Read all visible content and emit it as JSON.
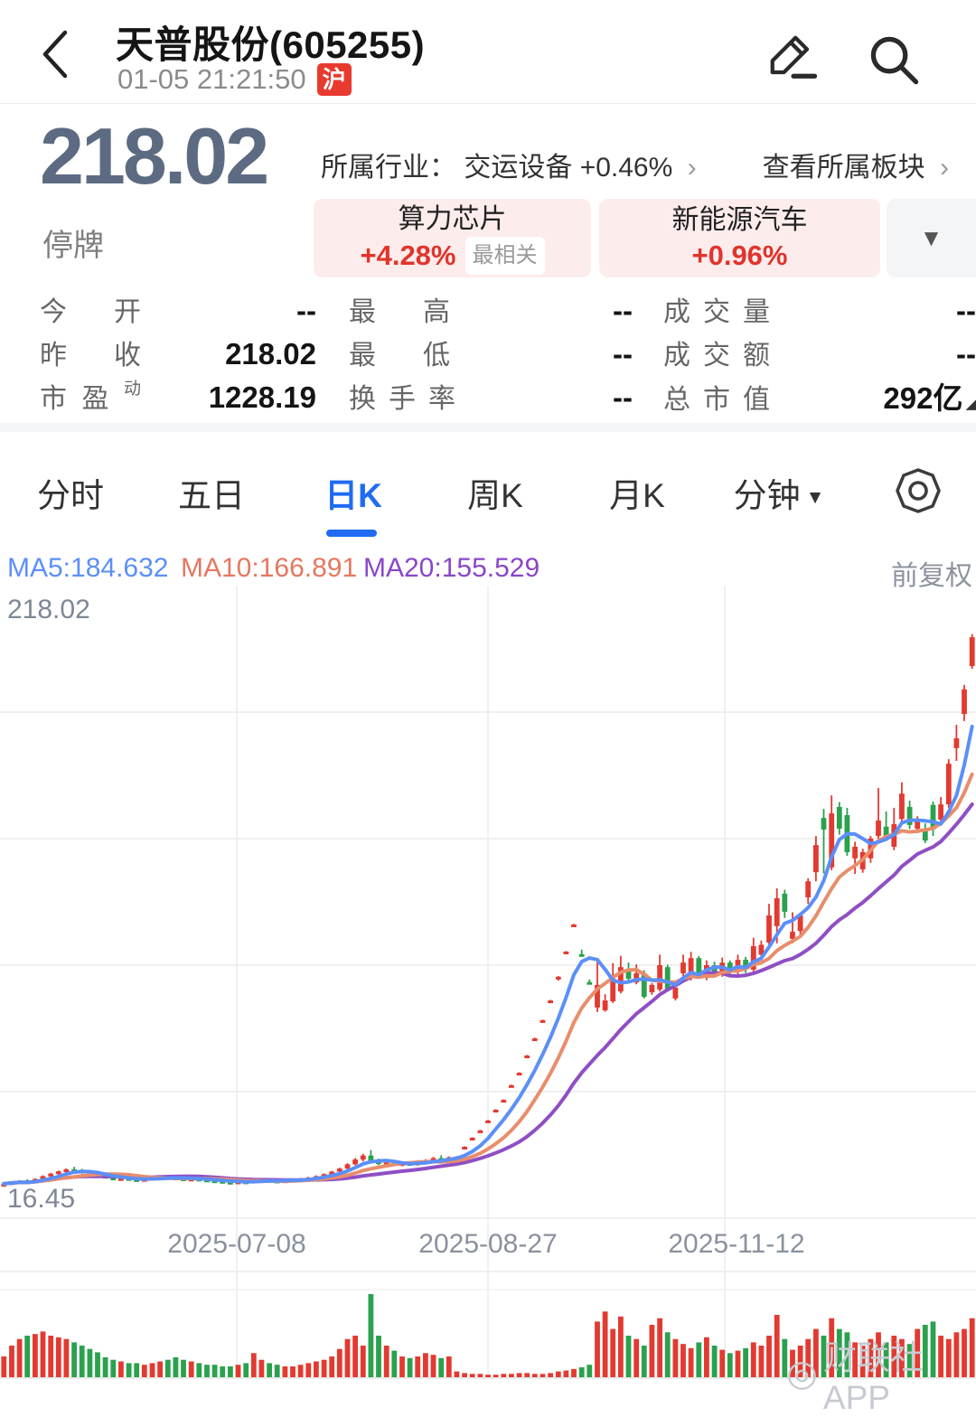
{
  "header": {
    "title": "天普股份(605255)",
    "datetime": "01-05 21:21:50",
    "exchange_badge": "沪"
  },
  "quote": {
    "price": "218.02",
    "status": "停牌",
    "industry_label": "所属行业：",
    "industry_name": "交运设备",
    "industry_change": "+0.46%",
    "chevron": "›",
    "view_sector": "查看所属板块",
    "tags": [
      {
        "name": "算力芯片",
        "change": "+4.28%",
        "badge": "最相关"
      },
      {
        "name": "新能源汽车",
        "change": "+0.96%"
      }
    ],
    "more_arrow": "▼"
  },
  "stats": {
    "rows": [
      [
        {
          "label": "今开",
          "value": "--"
        },
        {
          "label": "最高",
          "value": "--"
        },
        {
          "label": "成交量",
          "value": "--"
        }
      ],
      [
        {
          "label": "昨收",
          "value": "218.02"
        },
        {
          "label": "最低",
          "value": "--"
        },
        {
          "label": "成交额",
          "value": "--"
        }
      ],
      [
        {
          "label": "市盈",
          "sup": "动",
          "value": "1228.19"
        },
        {
          "label": "换手率",
          "value": "--"
        },
        {
          "label": "总市值",
          "value": "292亿",
          "corner": "◢"
        }
      ]
    ]
  },
  "tabs": [
    {
      "label": "分时"
    },
    {
      "label": "五日"
    },
    {
      "label": "日K",
      "active": true
    },
    {
      "label": "周K"
    },
    {
      "label": "月K"
    },
    {
      "label": "分钟",
      "dropdown": "▼"
    }
  ],
  "ma_legend": {
    "ma5": "MA5:184.632",
    "ma10": "MA10:166.891",
    "ma20": "MA20:155.529",
    "adjust": "前复权"
  },
  "watermark": "财联社APP",
  "chart_data": {
    "type": "candlestick",
    "title": "天普股份(605255) 日K 前复权",
    "y_max_label": "218.02",
    "y_min_label": "16.45",
    "price_max": 218.02,
    "price_min": 16.45,
    "x_labels": [
      "2025-07-08",
      "2025-08-27",
      "2025-11-12"
    ],
    "ma_values": {
      "MA5": 184.632,
      "MA10": 166.891,
      "MA20": 155.529
    },
    "legend_position": "top",
    "grid": true,
    "colors": {
      "up": "#e23a31",
      "down": "#2ba14e",
      "ma5": "#5b8ff9",
      "ma10": "#e98d6b",
      "ma20": "#8f4fc4"
    },
    "candles": [
      [
        22.5,
        23.2,
        21.8,
        22.9
      ],
      [
        22.9,
        23.8,
        22.4,
        23.5
      ],
      [
        23.5,
        24.2,
        23,
        23.8
      ],
      [
        23.8,
        24.5,
        23.2,
        23.4
      ],
      [
        23.4,
        24.8,
        23.2,
        24.6
      ],
      [
        24.6,
        25.9,
        24.3,
        25.6
      ],
      [
        25.6,
        26.8,
        25.2,
        26.5
      ],
      [
        26.5,
        27.6,
        26,
        27.3
      ],
      [
        27.3,
        28.4,
        26.8,
        28
      ],
      [
        28,
        28.9,
        27.2,
        27.6
      ],
      [
        27.6,
        28.2,
        26.5,
        26.9
      ],
      [
        26.9,
        27.4,
        25.8,
        26.2
      ],
      [
        26.2,
        26.8,
        25.3,
        25.7
      ],
      [
        25.7,
        26.2,
        24.8,
        25.1
      ],
      [
        25.1,
        25.6,
        24.3,
        24.6
      ],
      [
        24.6,
        25.2,
        24,
        24.9
      ],
      [
        24.9,
        25.4,
        24.2,
        24.5
      ],
      [
        24.5,
        25,
        23.8,
        24.2
      ],
      [
        24.2,
        24.9,
        23.7,
        24.6
      ],
      [
        24.6,
        25.3,
        24.1,
        25
      ],
      [
        25,
        25.7,
        24.5,
        25.4
      ],
      [
        25.4,
        26,
        24.8,
        25.1
      ],
      [
        25.1,
        25.6,
        24.4,
        24.8
      ],
      [
        24.8,
        25.3,
        24.1,
        24.5
      ],
      [
        24.5,
        25,
        23.9,
        24.7
      ],
      [
        24.7,
        25.2,
        24,
        24.4
      ],
      [
        24.4,
        24.9,
        23.8,
        24.1
      ],
      [
        24.1,
        24.6,
        23.5,
        23.9
      ],
      [
        23.9,
        24.4,
        23.3,
        23.6
      ],
      [
        23.6,
        24.1,
        23,
        23.4
      ],
      [
        23.4,
        23.9,
        22.8,
        23.7
      ],
      [
        23.7,
        24.2,
        23.1,
        23.5
      ],
      [
        23.5,
        24.3,
        23.2,
        24
      ],
      [
        24,
        24.6,
        23.5,
        24.3
      ],
      [
        24.3,
        24.8,
        23.7,
        24
      ],
      [
        24,
        24.5,
        23.4,
        23.8
      ],
      [
        23.8,
        24.3,
        23.2,
        24.1
      ],
      [
        24.1,
        24.7,
        23.6,
        24.4
      ],
      [
        24.4,
        25,
        23.9,
        24.7
      ],
      [
        24.7,
        25.4,
        24.2,
        25.1
      ],
      [
        25.1,
        25.9,
        24.6,
        25.6
      ],
      [
        25.6,
        26.6,
        25.2,
        26.3
      ],
      [
        26.3,
        27.5,
        25.9,
        27.2
      ],
      [
        27.2,
        28.6,
        26.8,
        28.3
      ],
      [
        28.3,
        30.2,
        27.9,
        29.8
      ],
      [
        29.8,
        32,
        29.4,
        31.5
      ],
      [
        31.5,
        33.5,
        30.8,
        32.9
      ],
      [
        32.9,
        34.8,
        30.2,
        30.9
      ],
      [
        30.9,
        31.8,
        29.5,
        29.9
      ],
      [
        29.9,
        30.8,
        29.2,
        30.4
      ],
      [
        30.4,
        31.2,
        29.6,
        29.9
      ],
      [
        29.9,
        30.6,
        29.1,
        30.2
      ],
      [
        30.2,
        30.9,
        29.4,
        29.7
      ],
      [
        29.7,
        30.8,
        29.3,
        30.5
      ],
      [
        30.5,
        31.6,
        30,
        31.2
      ],
      [
        31.2,
        32.4,
        30.7,
        32
      ],
      [
        32,
        33,
        31.4,
        31.6
      ],
      [
        31.6,
        32.6,
        31,
        32.3
      ],
      [
        32.4,
        32.7,
        32.1,
        32.5
      ],
      [
        35.9,
        36.2,
        35.6,
        36
      ],
      [
        39.1,
        39.4,
        38.8,
        39.2
      ],
      [
        41.7,
        42,
        41.4,
        41.8
      ],
      [
        45.2,
        45.5,
        44.9,
        45.3
      ],
      [
        49,
        49.3,
        48.7,
        49.1
      ],
      [
        52.5,
        52.8,
        52.2,
        52.6
      ],
      [
        57.7,
        58,
        57.4,
        57.8
      ],
      [
        62.1,
        62.4,
        61.8,
        62.2
      ],
      [
        68.2,
        68.5,
        67.9,
        68.3
      ],
      [
        74.3,
        74.6,
        74,
        74.4
      ],
      [
        80.7,
        81,
        80.4,
        80.8
      ],
      [
        87.7,
        88,
        87.4,
        87.8
      ],
      [
        96.1,
        96.4,
        94.8,
        96.2
      ],
      [
        105,
        105.3,
        104.6,
        105.1
      ],
      [
        114.5,
        114.9,
        114.2,
        114.7
      ],
      [
        104.2,
        105.8,
        103.6,
        104
      ],
      [
        94.3,
        95.2,
        93.8,
        94.1
      ],
      [
        85.3,
        102.8,
        83.7,
        93.3
      ],
      [
        84.3,
        90,
        83.8,
        87.8
      ],
      [
        87.5,
        101,
        86.9,
        95.5
      ],
      [
        91,
        103.6,
        90.3,
        99.6
      ],
      [
        99,
        101.2,
        94.2,
        95.5
      ],
      [
        94.2,
        100.6,
        93.5,
        97.4
      ],
      [
        97.4,
        98.5,
        88.5,
        89.1
      ],
      [
        90.7,
        94,
        89.8,
        93.3
      ],
      [
        91.7,
        104,
        91,
        100.3
      ],
      [
        99.6,
        100.5,
        91,
        91.7
      ],
      [
        88.5,
        93.5,
        87.8,
        92.3
      ],
      [
        97.4,
        104,
        95,
        101.2
      ],
      [
        96.5,
        105,
        94.9,
        102.8
      ],
      [
        102.8,
        103.5,
        95.5,
        96.5
      ],
      [
        96.5,
        102,
        95,
        100.3
      ],
      [
        100.3,
        101.5,
        96,
        97
      ],
      [
        97,
        103,
        96.2,
        101.2
      ],
      [
        101.2,
        102,
        96.8,
        98
      ],
      [
        98,
        104,
        97,
        102.2
      ],
      [
        102.2,
        103.2,
        97.5,
        99
      ],
      [
        98.7,
        110,
        97,
        107
      ],
      [
        104,
        109,
        102,
        107.5
      ],
      [
        108.3,
        122,
        107,
        117.9
      ],
      [
        114.1,
        127.5,
        108,
        124
      ],
      [
        125.6,
        127,
        117,
        119.2
      ],
      [
        109.6,
        119,
        108,
        112.1
      ],
      [
        112.4,
        118.5,
        110.5,
        117.9
      ],
      [
        124.3,
        131,
        122,
        130
      ],
      [
        133.2,
        146,
        130,
        142.8
      ],
      [
        152.4,
        155.6,
        132.8,
        148.3
      ],
      [
        134.9,
        160.4,
        133.9,
        154
      ],
      [
        156.3,
        158,
        146.5,
        148.6
      ],
      [
        153.4,
        156,
        139,
        140.3
      ],
      [
        138.1,
        144,
        132.6,
        142.2
      ],
      [
        134.2,
        141.5,
        133,
        140.3
      ],
      [
        138.1,
        146,
        136.5,
        145.1
      ],
      [
        146,
        163,
        145,
        151.5
      ],
      [
        149.3,
        154.7,
        144.4,
        145.4
      ],
      [
        142.2,
        156,
        141,
        150.2
      ],
      [
        152,
        165,
        151,
        161
      ],
      [
        156.3,
        158.5,
        148.5,
        149.9
      ],
      [
        148.6,
        153,
        147,
        151.5
      ],
      [
        148.6,
        150.5,
        143.5,
        144.4
      ],
      [
        157,
        158.2,
        146,
        148.3
      ],
      [
        151.8,
        159.8,
        149.9,
        157.2
      ],
      [
        157.2,
        173.2,
        156,
        171.6
      ],
      [
        177.1,
        185.4,
        172.6,
        180.6
      ],
      [
        189.2,
        199.5,
        186.7,
        197.9
      ],
      [
        206.2,
        217.5,
        205.2,
        216.4
      ]
    ],
    "volumes": [
      25,
      38,
      46,
      50,
      52,
      55,
      50,
      48,
      46,
      42,
      38,
      34,
      30,
      24,
      21,
      19,
      17,
      17,
      15,
      17,
      19,
      21,
      24,
      21,
      19,
      17,
      15,
      15,
      13,
      13,
      15,
      17,
      29,
      21,
      17,
      15,
      13,
      13,
      15,
      17,
      19,
      21,
      25,
      34,
      46,
      50,
      38,
      100,
      50,
      38,
      32,
      25,
      23,
      25,
      29,
      27,
      23,
      25,
      7,
      5,
      4,
      4,
      3,
      3,
      4,
      4,
      5,
      5,
      4,
      4,
      5,
      7,
      8,
      10,
      12,
      15,
      67,
      79,
      58,
      73,
      50,
      46,
      38,
      63,
      71,
      54,
      46,
      40,
      35,
      42,
      48,
      38,
      33,
      29,
      32,
      35,
      42,
      38,
      50,
      75,
      46,
      33,
      38,
      46,
      58,
      50,
      71,
      58,
      54,
      42,
      38,
      46,
      54,
      42,
      50,
      46,
      40,
      58,
      63,
      67,
      50,
      46,
      54,
      58,
      71
    ]
  }
}
